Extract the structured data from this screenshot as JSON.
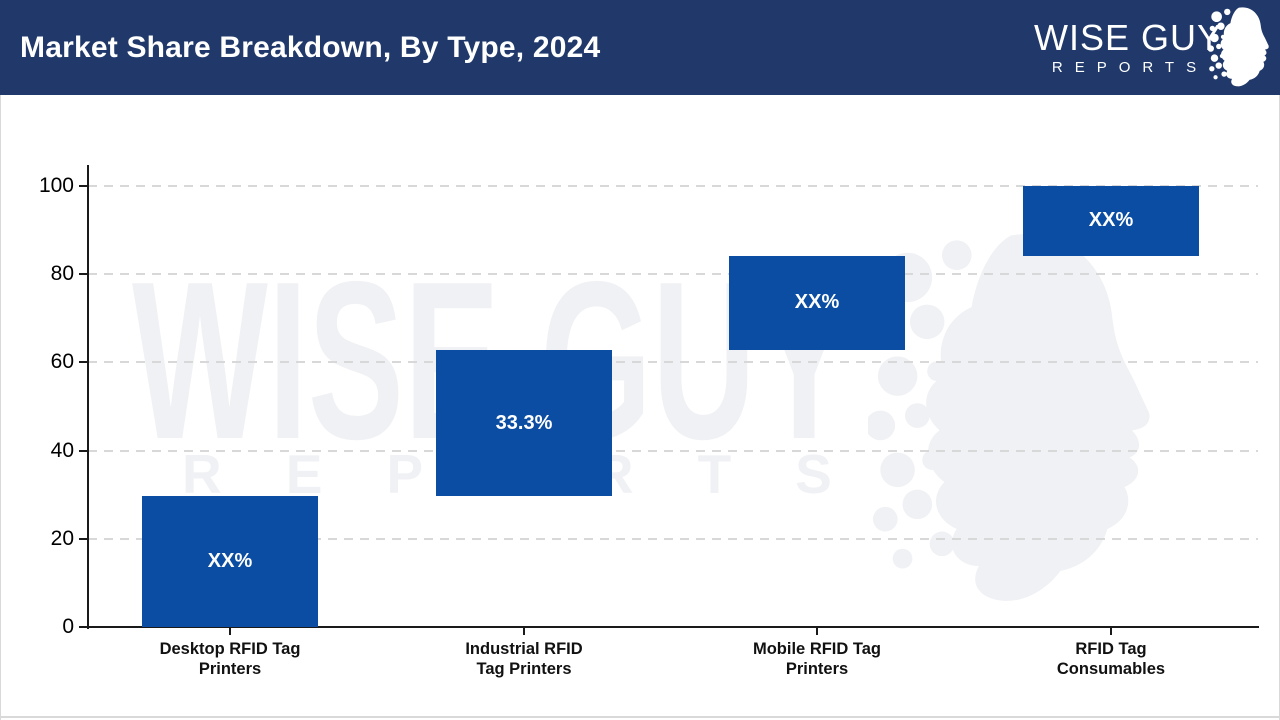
{
  "header": {
    "title": "Market Share Breakdown, By Type, 2024",
    "logo": {
      "line1": "WISE GUY",
      "line2": "REPORTS"
    }
  },
  "watermark": {
    "line1": "WISE GUY",
    "line2": "REPORTS"
  },
  "chart_data": {
    "type": "bar",
    "subtype": "waterfall-floating-bars",
    "title": "Market Share Breakdown, By Type, 2024",
    "categories": [
      "Desktop RFID Tag Printers",
      "Industrial RFID Tag Printers",
      "Mobile RFID Tag Printers",
      "RFID Tag Consumables"
    ],
    "category_label_lines": [
      [
        "Desktop RFID Tag",
        "Printers"
      ],
      [
        "Industrial RFID",
        "Tag Printers"
      ],
      [
        "Mobile RFID Tag",
        "Printers"
      ],
      [
        "RFID Tag",
        "Consumables"
      ]
    ],
    "segments": [
      {
        "category": "Desktop RFID Tag Printers",
        "start": 0,
        "end": 29.6,
        "label": "XX%"
      },
      {
        "category": "Industrial RFID Tag Printers",
        "start": 29.6,
        "end": 62.9,
        "label": "33.3%"
      },
      {
        "category": "Mobile RFID Tag Printers",
        "start": 62.9,
        "end": 84.2,
        "label": "XX%"
      },
      {
        "category": "RFID Tag Consumables",
        "start": 84.2,
        "end": 100,
        "label": "XX%"
      }
    ],
    "ylim": [
      0,
      100
    ],
    "yticks": [
      0,
      20,
      40,
      60,
      80,
      100
    ],
    "xlabel": "",
    "ylabel": "",
    "grid": "horizontal-dashed",
    "legend": "none",
    "colors": {
      "bar": "#0b4da2",
      "bar_label": "#ffffff",
      "header_bg": "#20396a",
      "grid": "#d8d8d8",
      "axis": "#1a1a1a",
      "watermark": "#f0f1f4"
    }
  }
}
